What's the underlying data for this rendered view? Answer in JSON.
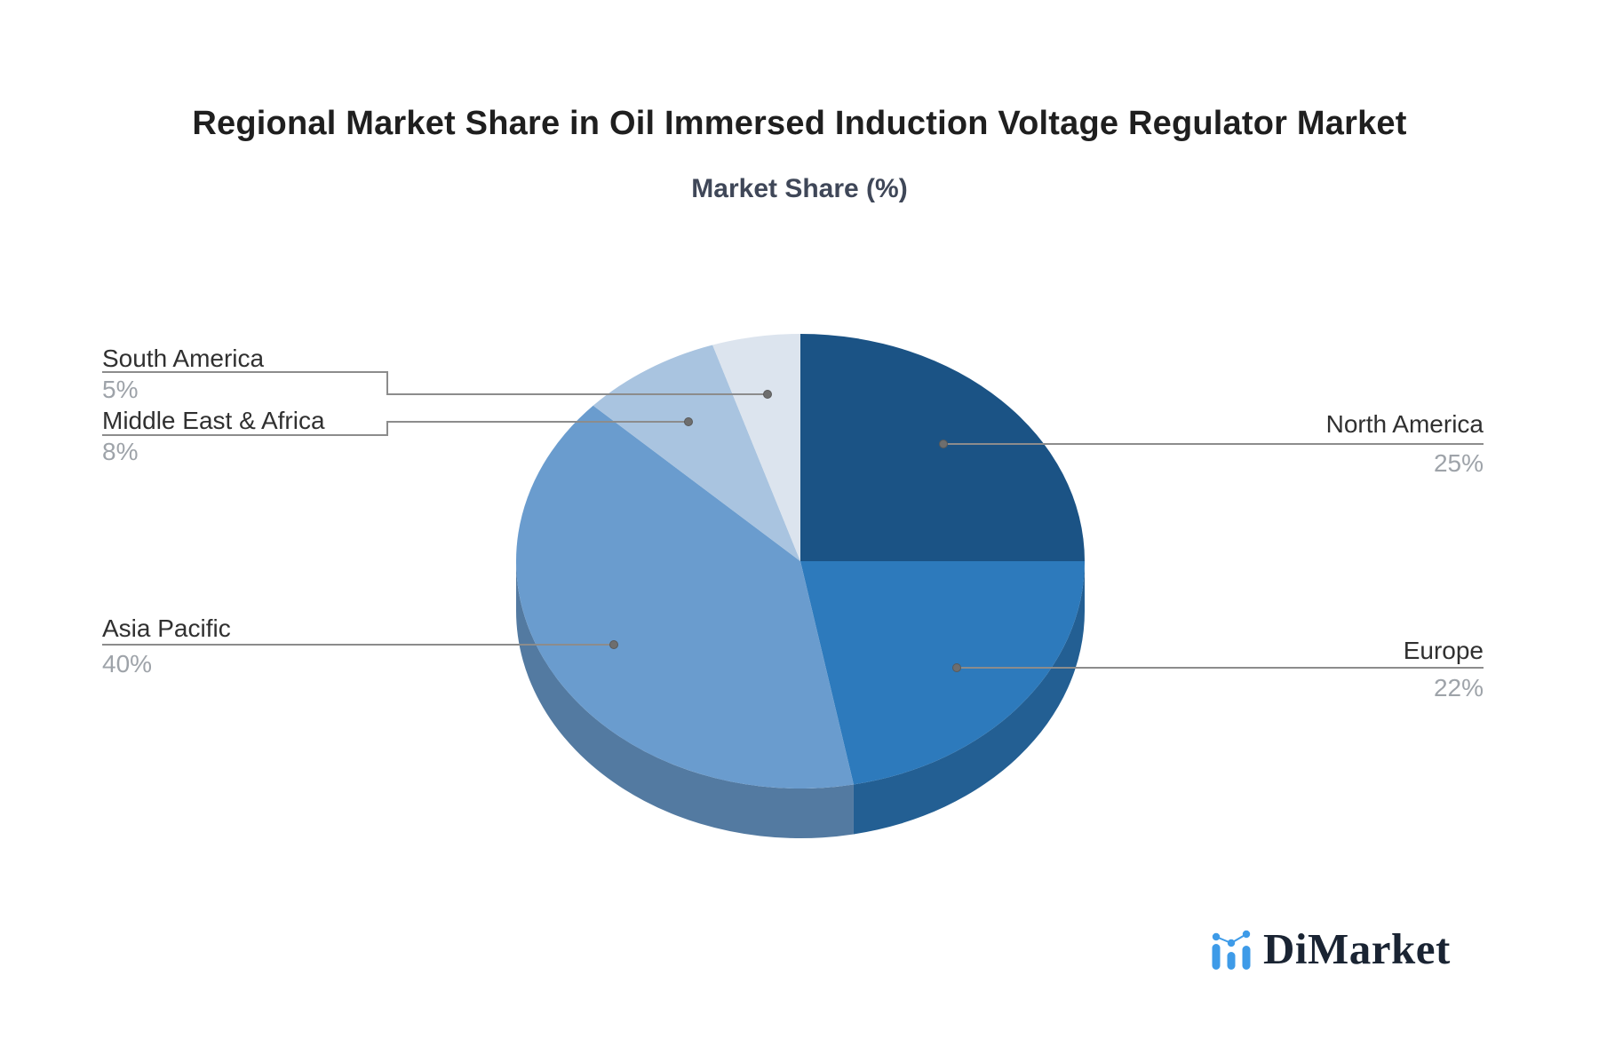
{
  "header": {
    "title": "Regional Market Share in Oil Immersed Induction Voltage Regulator Market",
    "subtitle": "Market Share (%)"
  },
  "chart_data": {
    "type": "pie",
    "effect": "3d",
    "start_angle_deg": 0,
    "direction": "clockwise",
    "title": "Regional Market Share in Oil Immersed Induction Voltage Regulator Market",
    "subtitle": "Market Share (%)",
    "labels": [
      "North America",
      "Europe",
      "Asia Pacific",
      "Middle East & Africa",
      "South America"
    ],
    "values": [
      25,
      22,
      40,
      8,
      5
    ],
    "value_labels": [
      "25%",
      "22%",
      "40%",
      "8%",
      "5%"
    ],
    "colors": [
      "#1B5385",
      "#2D7ABC",
      "#6A9CCE",
      "#A9C4E0",
      "#DCE4EE"
    ],
    "legend": "none",
    "connector_color": "#8c8c8c",
    "label_text_color": "#303030",
    "label_value_color": "#9ea3a9"
  },
  "logo": {
    "brand": "DiMarket",
    "icon": "bar-line-chart-icon",
    "icon_color": "#3e9be8",
    "text_color": "#1a2433"
  }
}
